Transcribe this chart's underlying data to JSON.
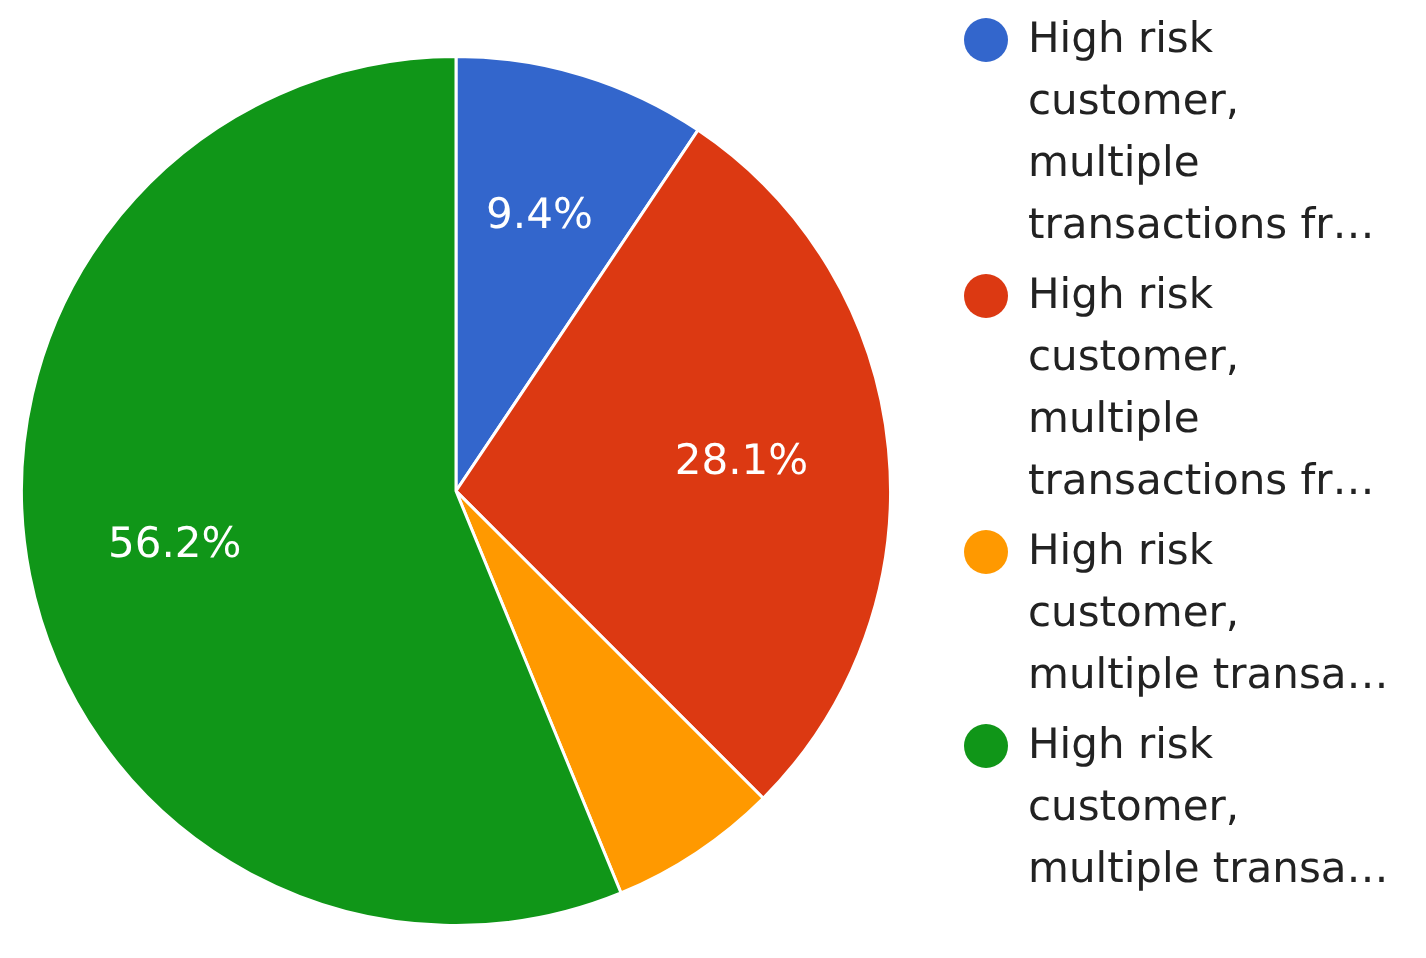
{
  "chart_data": {
    "type": "pie",
    "categories": [
      "High risk customer, multiple transactions fr…",
      "High risk customer, multiple transactions fr…",
      "High risk customer, multiple transa…",
      "High risk customer, multiple transa…"
    ],
    "values": [
      9.4,
      28.1,
      6.3,
      56.2
    ],
    "colors": [
      "#3366cc",
      "#dc3912",
      "#ff9900",
      "#109618"
    ],
    "value_labels": [
      "9.4%",
      "28.1%",
      null,
      "56.2%"
    ],
    "legend": "right"
  }
}
